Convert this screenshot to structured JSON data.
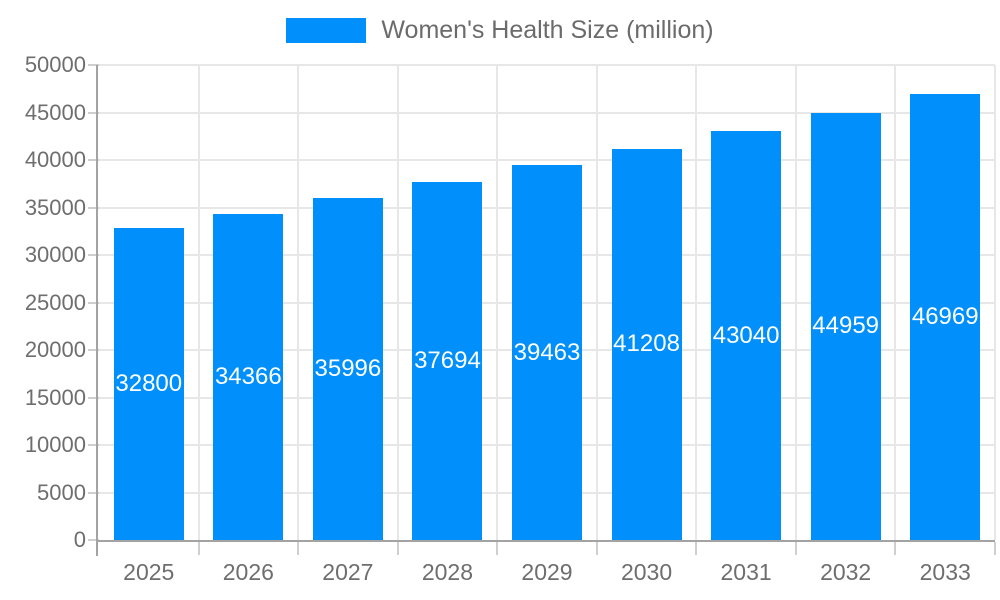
{
  "chart_data": {
    "type": "bar",
    "title": "",
    "legend": {
      "label": "Women's Health Size (million)",
      "position": "top"
    },
    "categories": [
      "2025",
      "2026",
      "2027",
      "2028",
      "2029",
      "2030",
      "2031",
      "2032",
      "2033"
    ],
    "series": [
      {
        "name": "Women's Health Size (million)",
        "values": [
          32800,
          34366,
          35996,
          37694,
          39463,
          41208,
          43040,
          44959,
          46969
        ]
      }
    ],
    "xlabel": "",
    "ylabel": "",
    "ylim": [
      0,
      50000
    ],
    "yticks": [
      0,
      5000,
      10000,
      15000,
      20000,
      25000,
      30000,
      35000,
      40000,
      45000,
      50000
    ],
    "grid": true,
    "value_labels": "inside-center",
    "colors": {
      "bar": "#008FFB",
      "value_label": "#FFFFFF",
      "axis_text": "#6E6E6E",
      "legend_text": "#6B6B6B",
      "gridline": "#E7E7E7",
      "axis_line": "#A3A3A3"
    }
  }
}
